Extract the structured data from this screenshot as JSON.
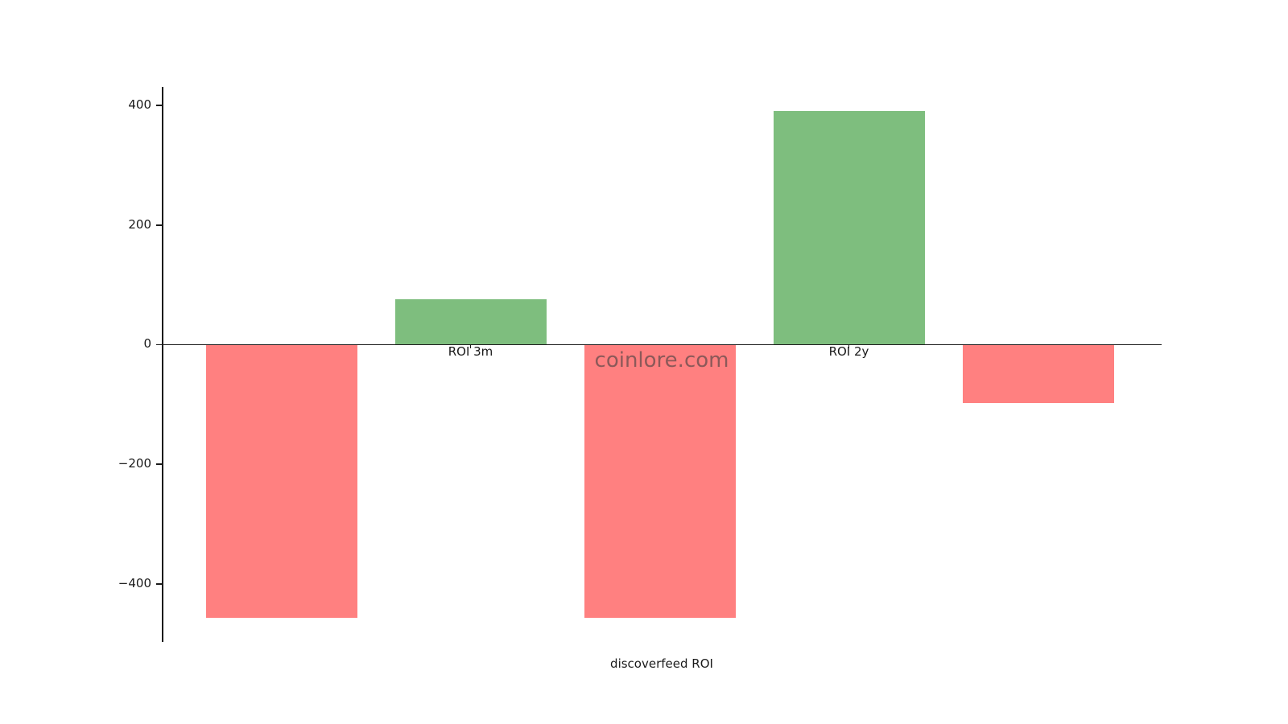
{
  "watermark": {
    "text": "coinlore.com",
    "color": "rgba(64,64,64,0.6)"
  },
  "chart_data": {
    "type": "bar",
    "title": "",
    "xlabel": "discoverfeed ROI",
    "ylabel": "",
    "categories": [
      "",
      "ROI 3m",
      "",
      "ROI 2y",
      ""
    ],
    "values": [
      -456,
      76,
      -456,
      390,
      -97
    ],
    "bar_colors": [
      "#ff8080",
      "#7ebe7e",
      "#ff8080",
      "#7ebe7e",
      "#ff8080"
    ],
    "positive_color": "#7ebe7e",
    "negative_color": "#ff8080",
    "ylim": [
      -497,
      431
    ],
    "yticks": [
      400,
      200,
      0,
      -200,
      -400
    ],
    "baseline": 0,
    "grid": false,
    "legend": null,
    "axis_color": "#1a1a1a",
    "text_color": "#1a1a1a"
  }
}
